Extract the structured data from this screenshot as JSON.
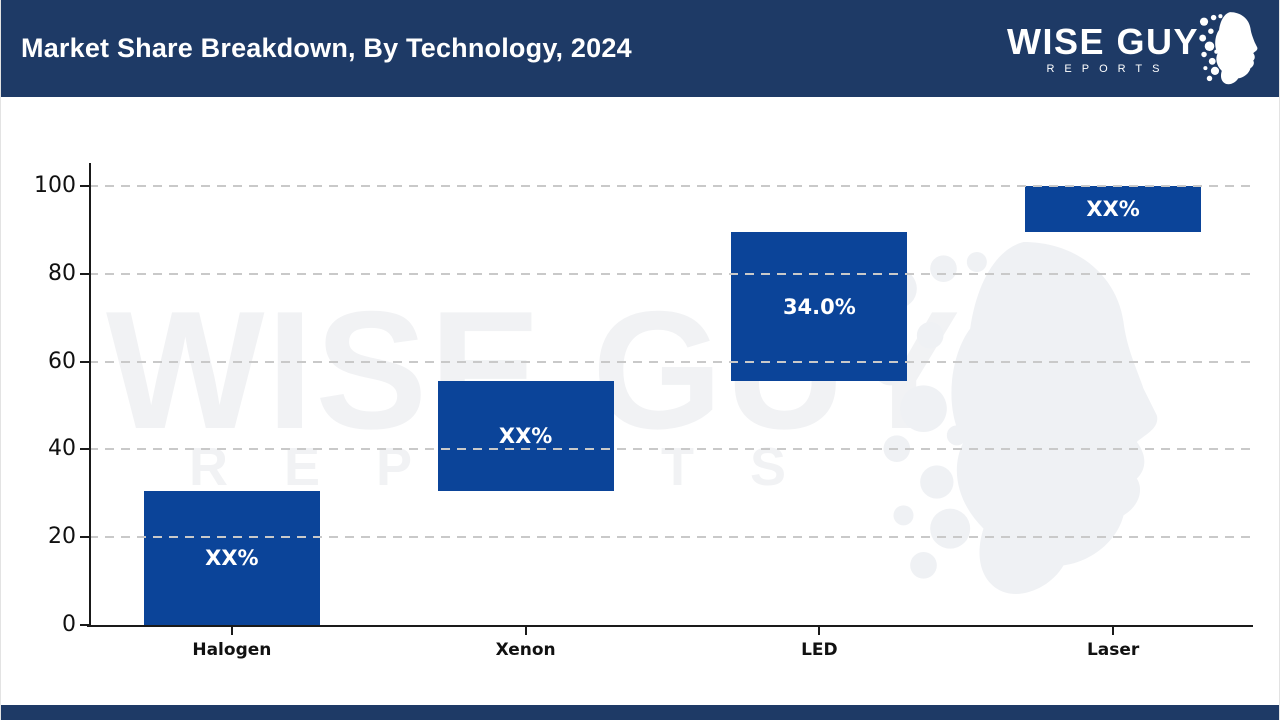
{
  "header": {
    "title": "Market Share Breakdown, By Technology, 2024",
    "logo": {
      "line1": "WISE GUY",
      "line2": "REPORTS"
    }
  },
  "watermark": {
    "line1": "WISE GUY",
    "line2": "REPORTS"
  },
  "footer": {},
  "colors": {
    "header_bg": "#1e3a66",
    "footer_bg": "#1e3a66",
    "bar": "#0b4499",
    "gridline": "#c9c9c9",
    "axis": "#1a1a1a",
    "bar_label_text": "#ffffff",
    "watermark_text": "#f1f2f4",
    "watermark_face": "#eff1f4",
    "title_text": "#ffffff"
  },
  "chart_data": {
    "type": "bar",
    "subtype": "waterfall",
    "title": "Market Share Breakdown, By Technology, 2024",
    "categories": [
      "Halogen",
      "Xenon",
      "LED",
      "Laser"
    ],
    "segments": [
      {
        "category": "Halogen",
        "start": 0,
        "end": 30.5,
        "value_label": "XX%"
      },
      {
        "category": "Xenon",
        "start": 30.5,
        "end": 55.5,
        "value_label": "XX%"
      },
      {
        "category": "LED",
        "start": 55.5,
        "end": 89.5,
        "value_label": "34.0%"
      },
      {
        "category": "Laser",
        "start": 89.5,
        "end": 100,
        "value_label": "XX%"
      }
    ],
    "xlabel": "",
    "ylabel": "",
    "ylim": [
      0,
      105
    ],
    "yticks": [
      0,
      20,
      40,
      60,
      80,
      100
    ],
    "grid": "horizontal dashed, drawn above bars",
    "legend": "none"
  }
}
